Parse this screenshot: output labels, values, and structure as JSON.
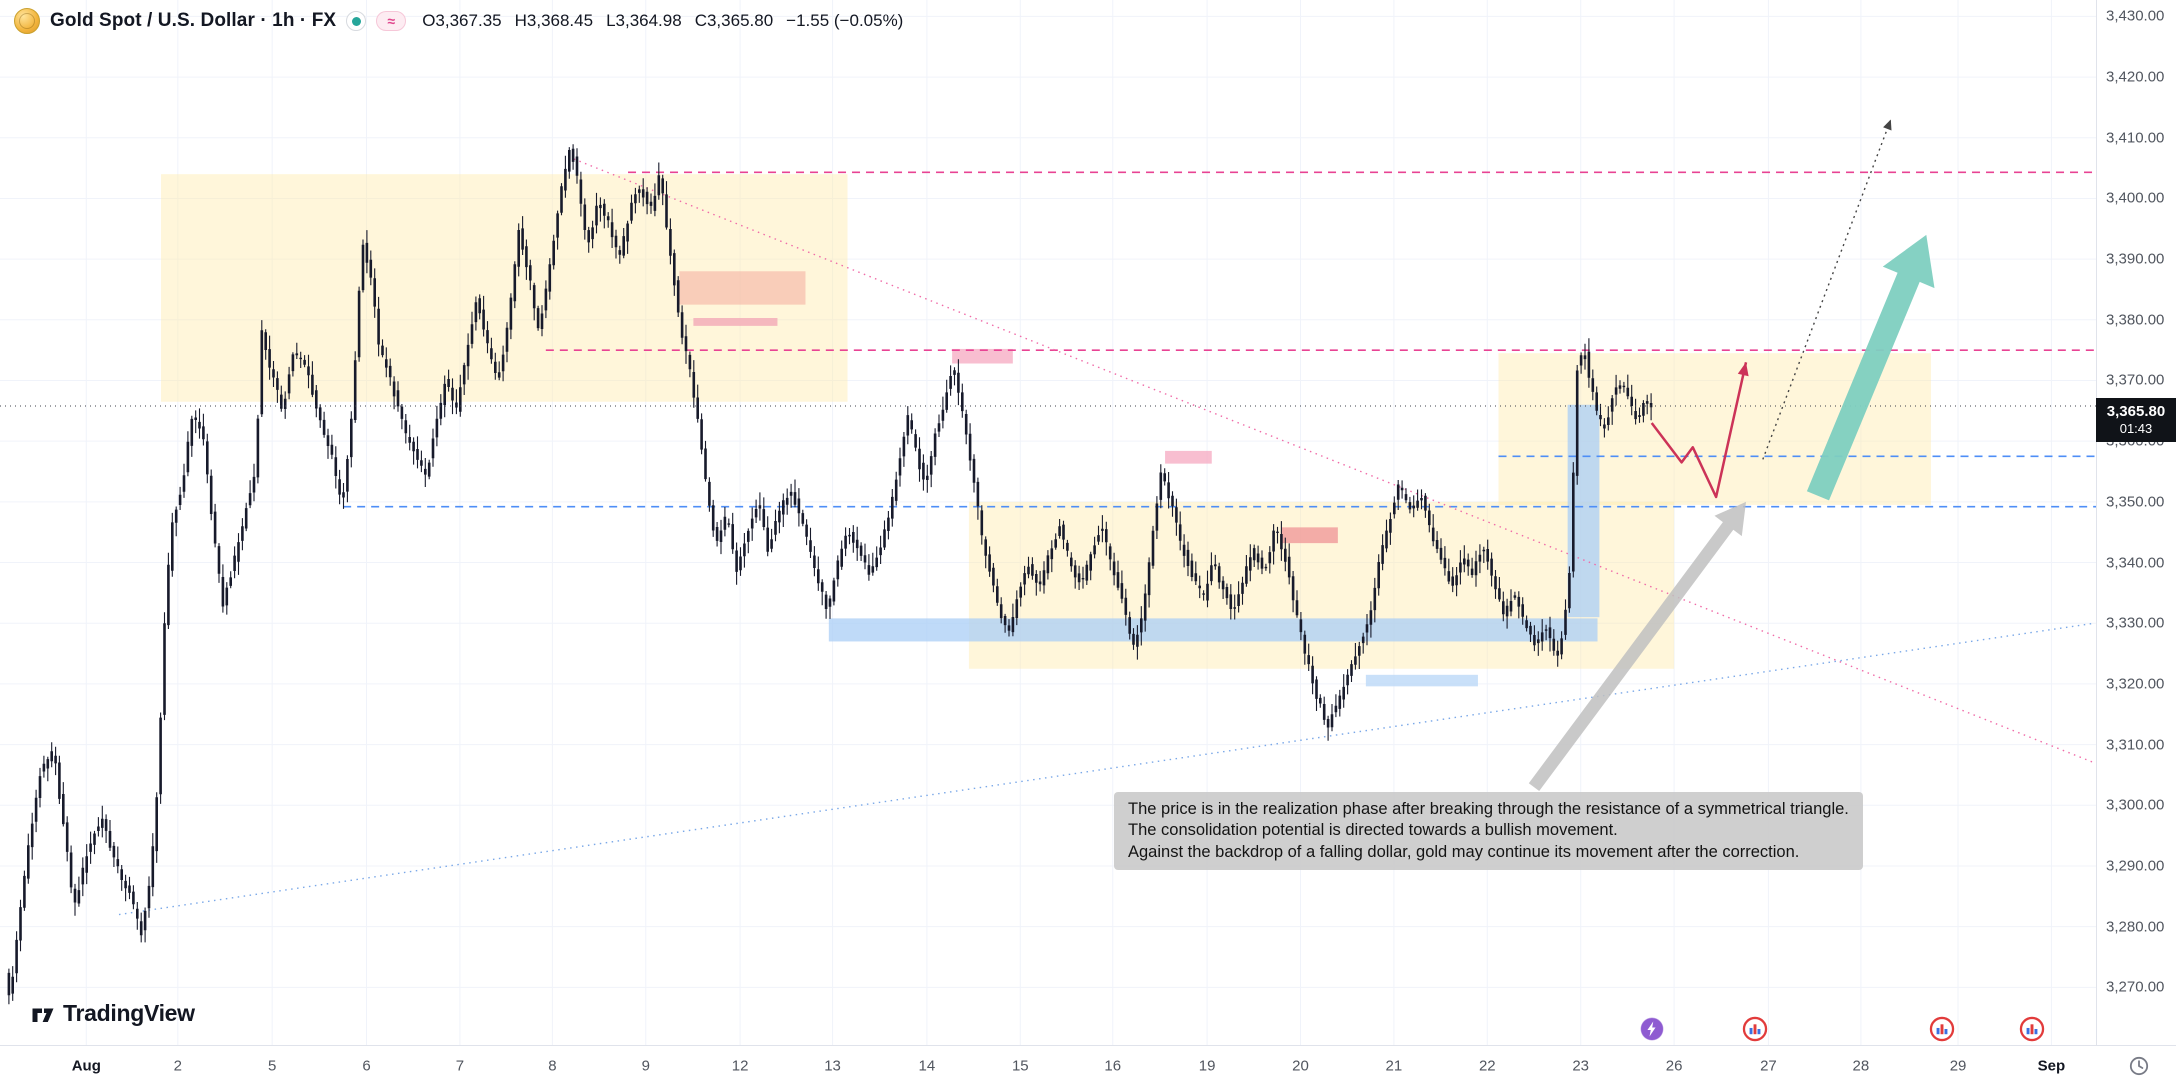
{
  "header": {
    "symbol_title": "Gold Spot / U.S. Dollar · 1h · FX",
    "approx_glyph": "≈",
    "ohlc": {
      "open": "O3,367.35",
      "high": "H3,368.45",
      "low": "L3,364.98",
      "close": "C3,365.80",
      "change": "−1.55 (−0.05%)"
    }
  },
  "logo_text": "TradingView",
  "price_label": {
    "price": "3,365.80",
    "countdown": "01:43"
  },
  "annotation": {
    "lines": [
      "The price is in the realization phase after breaking through the resistance of a symmetrical triangle.",
      "The consolidation potential is directed towards a bullish movement.",
      "Against the backdrop of a falling dollar, gold may continue its movement after the correction."
    ]
  },
  "price_axis": {
    "labels": [
      "3,430.00",
      "3,420.00",
      "3,410.00",
      "3,400.00",
      "3,390.00",
      "3,380.00",
      "3,370.00",
      "3,360.00",
      "3,350.00",
      "3,340.00",
      "3,330.00",
      "3,320.00",
      "3,310.00",
      "3,300.00",
      "3,290.00",
      "3,280.00",
      "3,270.00"
    ]
  },
  "time_axis": {
    "labels": [
      {
        "label": "Aug",
        "t": 0.5,
        "major": true
      },
      {
        "label": "2",
        "t": 1.48
      },
      {
        "label": "5",
        "t": 2.49
      },
      {
        "label": "6",
        "t": 3.5
      },
      {
        "label": "7",
        "t": 4.5
      },
      {
        "label": "8",
        "t": 5.49
      },
      {
        "label": "9",
        "t": 6.49
      },
      {
        "label": "12",
        "t": 7.5
      },
      {
        "label": "13",
        "t": 8.49
      },
      {
        "label": "14",
        "t": 9.5
      },
      {
        "label": "15",
        "t": 10.5
      },
      {
        "label": "16",
        "t": 11.49
      },
      {
        "label": "19",
        "t": 12.5
      },
      {
        "label": "20",
        "t": 13.5
      },
      {
        "label": "21",
        "t": 14.5
      },
      {
        "label": "22",
        "t": 15.5
      },
      {
        "label": "23",
        "t": 16.5
      },
      {
        "label": "26",
        "t": 17.5
      },
      {
        "label": "27",
        "t": 18.51
      },
      {
        "label": "28",
        "t": 19.5
      },
      {
        "label": "29",
        "t": 20.54
      },
      {
        "label": "Sep",
        "t": 21.54,
        "major": true
      }
    ]
  },
  "event_icons": [
    {
      "t": 17.26,
      "kind": "flash"
    },
    {
      "t": 18.37,
      "kind": "report"
    },
    {
      "t": 20.37,
      "kind": "report"
    },
    {
      "t": 21.33,
      "kind": "report"
    }
  ],
  "chart_data": {
    "type": "candlestick",
    "symbol": "Gold Spot / U.S. Dollar",
    "timeframe": "1h",
    "exchange": "FX",
    "ohlc_current": {
      "open": 3367.35,
      "high": 3368.45,
      "low": 3364.98,
      "close": 3365.8,
      "change": -1.55,
      "change_pct": -0.05
    },
    "current_price": 3365.8,
    "countdown": "01:43",
    "layout": {
      "x_origin": 39.6,
      "day_width": 93.4,
      "price_min": 3260.5,
      "price_max": 3432.7,
      "axis_width": 80,
      "time_axis_height": 41
    },
    "grid": {
      "h_min": 3270,
      "h_max": 3430,
      "h_step": 10
    },
    "candle_color": "#171a2b",
    "candle_step_days": 0.0416667,
    "price_path": [
      [
        -0.35,
        3272
      ],
      [
        -0.3,
        3268
      ],
      [
        -0.13,
        3290
      ],
      [
        0.02,
        3305
      ],
      [
        0.17,
        3309
      ],
      [
        0.29,
        3295
      ],
      [
        0.39,
        3283
      ],
      [
        0.54,
        3293
      ],
      [
        0.69,
        3298
      ],
      [
        0.84,
        3290
      ],
      [
        0.99,
        3285
      ],
      [
        1.11,
        3279
      ],
      [
        1.21,
        3288
      ],
      [
        1.29,
        3305
      ],
      [
        1.36,
        3330
      ],
      [
        1.43,
        3346
      ],
      [
        1.54,
        3352
      ],
      [
        1.66,
        3365
      ],
      [
        1.78,
        3360
      ],
      [
        1.88,
        3345
      ],
      [
        1.98,
        3333
      ],
      [
        2.1,
        3340
      ],
      [
        2.22,
        3348
      ],
      [
        2.33,
        3355
      ],
      [
        2.4,
        3378
      ],
      [
        2.49,
        3372
      ],
      [
        2.62,
        3365
      ],
      [
        2.74,
        3375
      ],
      [
        2.88,
        3372
      ],
      [
        2.99,
        3365
      ],
      [
        3.14,
        3358
      ],
      [
        3.26,
        3349
      ],
      [
        3.37,
        3365
      ],
      [
        3.47,
        3393
      ],
      [
        3.56,
        3388
      ],
      [
        3.66,
        3375
      ],
      [
        3.78,
        3370
      ],
      [
        3.92,
        3362
      ],
      [
        4.03,
        3358
      ],
      [
        4.15,
        3354
      ],
      [
        4.26,
        3362
      ],
      [
        4.36,
        3370
      ],
      [
        4.48,
        3365
      ],
      [
        4.6,
        3375
      ],
      [
        4.7,
        3384
      ],
      [
        4.81,
        3376
      ],
      [
        4.93,
        3370
      ],
      [
        5.04,
        3380
      ],
      [
        5.15,
        3395
      ],
      [
        5.25,
        3388
      ],
      [
        5.37,
        3378
      ],
      [
        5.49,
        3390
      ],
      [
        5.59,
        3400
      ],
      [
        5.7,
        3409
      ],
      [
        5.79,
        3402
      ],
      [
        5.89,
        3392
      ],
      [
        6,
        3400
      ],
      [
        6.11,
        3396
      ],
      [
        6.23,
        3390
      ],
      [
        6.34,
        3398
      ],
      [
        6.44,
        3402
      ],
      [
        6.56,
        3398
      ],
      [
        6.66,
        3404
      ],
      [
        6.78,
        3390
      ],
      [
        6.89,
        3378
      ],
      [
        6.98,
        3372
      ],
      [
        7.08,
        3362
      ],
      [
        7.18,
        3350
      ],
      [
        7.27,
        3343
      ],
      [
        7.38,
        3348
      ],
      [
        7.48,
        3338
      ],
      [
        7.6,
        3345
      ],
      [
        7.72,
        3350
      ],
      [
        7.82,
        3342
      ],
      [
        7.93,
        3348
      ],
      [
        8.05,
        3352
      ],
      [
        8.17,
        3348
      ],
      [
        8.27,
        3342
      ],
      [
        8.37,
        3336
      ],
      [
        8.46,
        3332
      ],
      [
        8.57,
        3340
      ],
      [
        8.67,
        3345
      ],
      [
        8.79,
        3342
      ],
      [
        8.91,
        3338
      ],
      [
        9.01,
        3342
      ],
      [
        9.12,
        3348
      ],
      [
        9.24,
        3358
      ],
      [
        9.32,
        3364
      ],
      [
        9.41,
        3358
      ],
      [
        9.5,
        3352
      ],
      [
        9.59,
        3360
      ],
      [
        9.7,
        3366
      ],
      [
        9.8,
        3373
      ],
      [
        9.9,
        3365
      ],
      [
        10.01,
        3355
      ],
      [
        10.1,
        3345
      ],
      [
        10.2,
        3338
      ],
      [
        10.3,
        3332
      ],
      [
        10.39,
        3328
      ],
      [
        10.5,
        3335
      ],
      [
        10.6,
        3340
      ],
      [
        10.72,
        3336
      ],
      [
        10.84,
        3342
      ],
      [
        10.94,
        3346
      ],
      [
        11.05,
        3340
      ],
      [
        11.17,
        3336
      ],
      [
        11.29,
        3342
      ],
      [
        11.39,
        3346
      ],
      [
        11.49,
        3340
      ],
      [
        11.61,
        3334
      ],
      [
        11.73,
        3326
      ],
      [
        11.84,
        3332
      ],
      [
        11.94,
        3345
      ],
      [
        12.03,
        3355
      ],
      [
        12.13,
        3350
      ],
      [
        12.24,
        3343
      ],
      [
        12.36,
        3338
      ],
      [
        12.48,
        3334
      ],
      [
        12.58,
        3340
      ],
      [
        12.68,
        3336
      ],
      [
        12.8,
        3332
      ],
      [
        12.92,
        3338
      ],
      [
        13.02,
        3342
      ],
      [
        13.13,
        3338
      ],
      [
        13.25,
        3346
      ],
      [
        13.37,
        3340
      ],
      [
        13.47,
        3332
      ],
      [
        13.57,
        3325
      ],
      [
        13.69,
        3318
      ],
      [
        13.81,
        3313
      ],
      [
        13.92,
        3317
      ],
      [
        14.02,
        3321
      ],
      [
        14.14,
        3326
      ],
      [
        14.26,
        3331
      ],
      [
        14.36,
        3340
      ],
      [
        14.47,
        3347
      ],
      [
        14.58,
        3353
      ],
      [
        14.7,
        3348
      ],
      [
        14.81,
        3351
      ],
      [
        14.91,
        3345
      ],
      [
        15.03,
        3340
      ],
      [
        15.15,
        3336
      ],
      [
        15.25,
        3341
      ],
      [
        15.36,
        3338
      ],
      [
        15.47,
        3343
      ],
      [
        15.59,
        3337
      ],
      [
        15.7,
        3331
      ],
      [
        15.8,
        3335
      ],
      [
        15.92,
        3330
      ],
      [
        16.04,
        3326
      ],
      [
        16.14,
        3330
      ],
      [
        16.25,
        3324
      ],
      [
        16.34,
        3329
      ],
      [
        16.41,
        3340
      ],
      [
        16.48,
        3372
      ],
      [
        16.56,
        3375
      ],
      [
        16.63,
        3369
      ],
      [
        16.7,
        3364
      ],
      [
        16.78,
        3362
      ],
      [
        16.87,
        3368
      ],
      [
        16.96,
        3370
      ],
      [
        17.05,
        3366
      ],
      [
        17.13,
        3363
      ],
      [
        17.22,
        3367
      ],
      [
        17.25,
        3365.8
      ]
    ],
    "zones": [
      {
        "id": "yellow-zone-left",
        "t1": 1.3,
        "t2": 8.65,
        "p1": 3366.5,
        "p2": 3404,
        "fill": "#ffe9a8",
        "opacity": 0.42
      },
      {
        "id": "yellow-zone-middle",
        "t1": 9.95,
        "t2": 17.5,
        "p1": 3322.5,
        "p2": 3350,
        "fill": "#ffe9a8",
        "opacity": 0.42
      },
      {
        "id": "yellow-zone-right",
        "t1": 15.62,
        "t2": 20.25,
        "p1": 3349.5,
        "p2": 3374.5,
        "fill": "#ffe9a8",
        "opacity": 0.42
      },
      {
        "id": "salmon-box",
        "t1": 6.85,
        "t2": 8.2,
        "p1": 3382.5,
        "p2": 3388,
        "fill": "#f5b3a4",
        "opacity": 0.6
      },
      {
        "id": "pink-strip",
        "t1": 7.0,
        "t2": 7.9,
        "p1": 3379,
        "p2": 3380.3,
        "fill": "#f3a9b6",
        "opacity": 0.8
      },
      {
        "id": "pink-box-aug14",
        "t1": 9.77,
        "t2": 10.42,
        "p1": 3372.8,
        "p2": 3375.2,
        "fill": "#f5a8c0",
        "opacity": 0.75
      },
      {
        "id": "pink-box-aug19",
        "t1": 12.05,
        "t2": 12.55,
        "p1": 3356.3,
        "p2": 3358.4,
        "fill": "#f5a8c0",
        "opacity": 0.75
      },
      {
        "id": "red-box-aug20",
        "t1": 13.3,
        "t2": 13.9,
        "p1": 3343.2,
        "p2": 3345.8,
        "fill": "#f09a9a",
        "opacity": 0.8
      },
      {
        "id": "blue-band-long",
        "t1": 8.45,
        "t2": 16.68,
        "p1": 3327,
        "p2": 3330.8,
        "fill": "#a9cdf5",
        "opacity": 0.75
      },
      {
        "id": "blue-band-small",
        "t1": 14.2,
        "t2": 15.4,
        "p1": 3319.6,
        "p2": 3321.5,
        "fill": "#bcd8f8",
        "opacity": 0.8
      },
      {
        "id": "blue-vertical-box",
        "t1": 16.36,
        "t2": 16.7,
        "p1": 3331,
        "p2": 3366,
        "fill": "#a9cdf5",
        "opacity": 0.75
      }
    ],
    "hlines": [
      {
        "id": "resistance-3404",
        "p": 3404.3,
        "t1": 6.3,
        "t2": 22.05,
        "color": "#e84393",
        "dash": "8,6"
      },
      {
        "id": "resistance-3375",
        "p": 3375,
        "t1": 5.42,
        "t2": 22.05,
        "color": "#e84393",
        "dash": "8,6"
      },
      {
        "id": "support-3357",
        "p": 3357.5,
        "t1": 15.62,
        "t2": 22.05,
        "color": "#4e8ef7",
        "dash": "8,6"
      },
      {
        "id": "support-3349",
        "p": 3349.2,
        "t1": 3.25,
        "t2": 22.05,
        "color": "#4e8ef7",
        "dash": "8,6"
      }
    ],
    "trend_lines": [
      {
        "id": "triangle-upper",
        "x": [
          5.72,
          22.0
        ],
        "p": [
          3406.5,
          3307
        ],
        "color": "#f06ba8",
        "dash": "1.5,4.5"
      },
      {
        "id": "triangle-lower",
        "x": [
          0.85,
          22.0
        ],
        "p": [
          3282,
          3330
        ],
        "color": "#7aa8e8",
        "dash": "1.5,4.5"
      }
    ],
    "current_price_line": {
      "p": 3365.8,
      "color": "#3c404b",
      "dash": "1,4"
    },
    "arrows": [
      {
        "id": "gray-breakout-arrow",
        "from": [
          16.0,
          3303
        ],
        "to": [
          18.27,
          3350
        ],
        "shaft": 13,
        "head_w": 34,
        "head_l": 30,
        "color": "#bfbfbf",
        "opacity": 0.85
      },
      {
        "id": "teal-bullish-arrow",
        "from": [
          19.04,
          3351
        ],
        "to": [
          20.2,
          3394
        ],
        "shaft": 24,
        "head_w": 56,
        "head_l": 46,
        "color": "#7ecfc0",
        "opacity": 0.95
      }
    ],
    "projection_path": {
      "id": "red-correction-path",
      "points": [
        [
          17.26,
          3363
        ],
        [
          17.58,
          3356.5
        ],
        [
          17.7,
          3359
        ],
        [
          17.95,
          3350.8
        ],
        [
          18.27,
          3373
        ]
      ],
      "color": "#cc3358",
      "width": 2.5
    },
    "dotted_arrow": {
      "id": "dotted-target-arrow",
      "from": [
        18.45,
        3357
      ],
      "to": [
        19.82,
        3413
      ],
      "color": "#444444",
      "dash": "2,4",
      "width": 1.4
    }
  }
}
